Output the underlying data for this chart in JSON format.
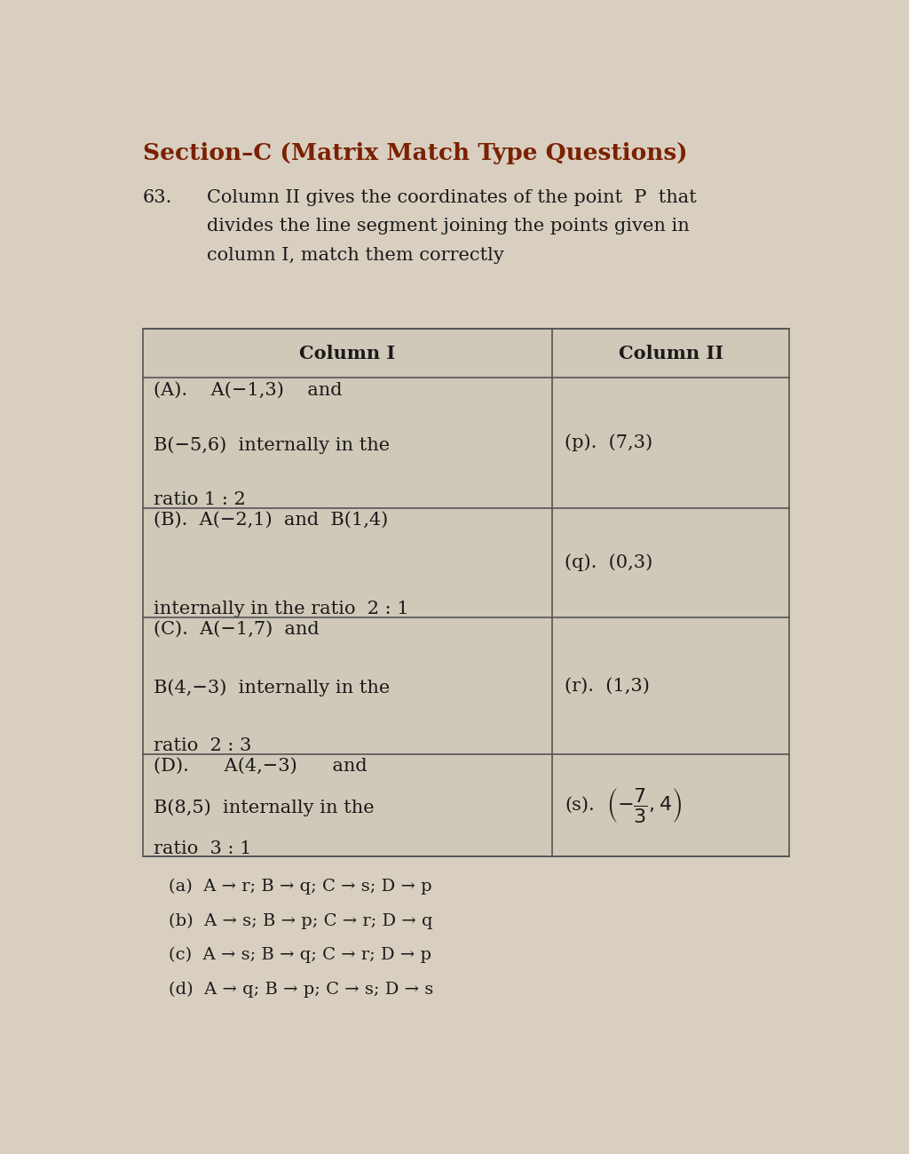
{
  "title": "Section–C (Matrix Match Type Questions)",
  "title_color": "#7B2000",
  "bg_color": "#D8CFC0",
  "text_color": "#1a1a1a",
  "table_line_color": "#555555",
  "question_number": "63.",
  "question_lines": [
    "Column II gives the coordinates of the point  P  that",
    "divides the line segment joining the points given in",
    "column I, match them correctly"
  ],
  "col1_header": "Column I",
  "col2_header": "Column II",
  "row_A_col1": [
    "(A).    A(−1,3)    and",
    "B(−5,6)  internally in the",
    "ratio 1 : 2"
  ],
  "row_A_col2": "(p).  (7,3)",
  "row_B_col1": [
    "(B).  A(−2,1)  and  B(1,4)",
    "internally in the ratio  2 : 1"
  ],
  "row_B_col2": "(q).  (0,3)",
  "row_C_col1": [
    "(C).  A(−1,7)  and",
    "B(4,−3)  internally in the",
    "ratio  2 : 3"
  ],
  "row_C_col2": "(r).  (1,3)",
  "row_D_col1": [
    "(D).      A(4,−3)      and",
    "B(8,5)  internally in the",
    "ratio  3 : 1"
  ],
  "row_D_col2_prefix": "(s).",
  "row_D_col2_num": "7",
  "row_D_col2_den": "3",
  "row_D_col2_suffix": ", 4",
  "options": [
    "(a)  A → r; B → q; C → s; D → p",
    "(b)  A → s; B → p; C → r; D → q",
    "(c)  A → s; B → q; C → r; D → p",
    "(d)  A → q; B → p; C → s; D → s"
  ],
  "title_fontsize": 19,
  "body_fontsize": 15,
  "header_fontsize": 15,
  "option_fontsize": 14
}
